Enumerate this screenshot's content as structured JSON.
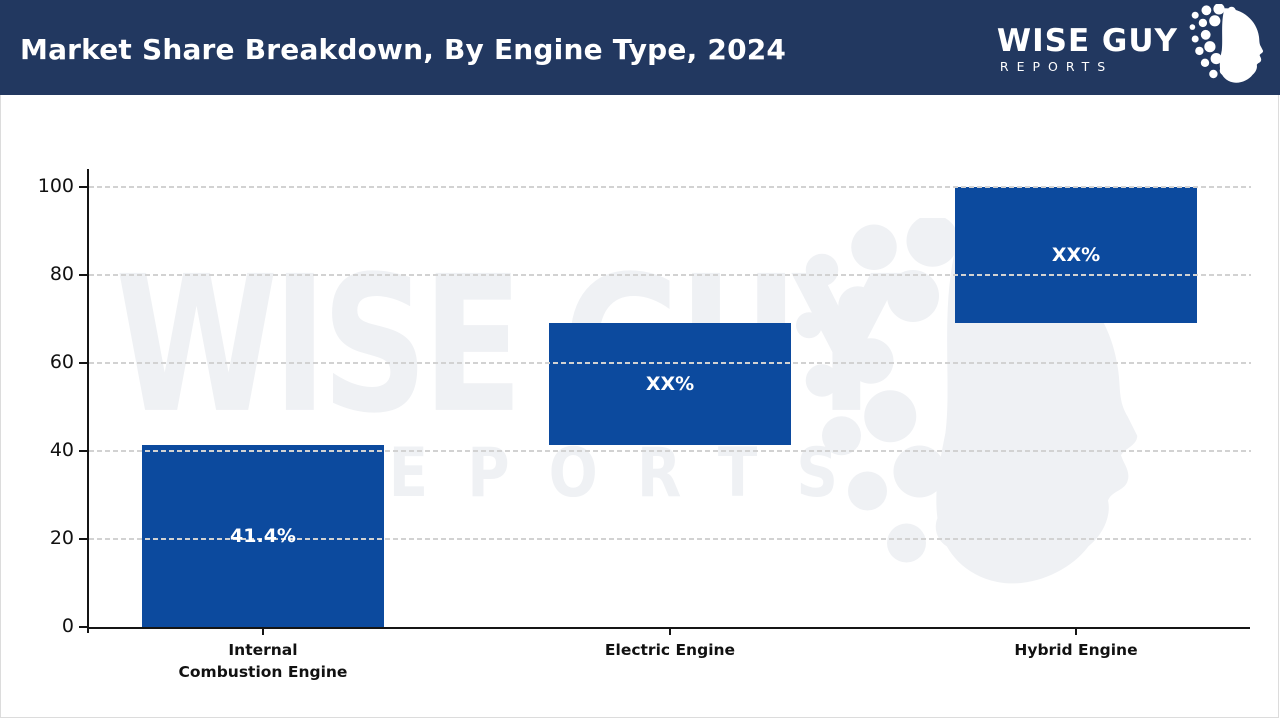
{
  "header": {
    "title": "Market Share Breakdown, By Engine Type, 2024",
    "logo": {
      "line1": "WISE GUY",
      "line2": "REPORTS"
    }
  },
  "watermark": {
    "line1": "WISE GUY",
    "line2": "REPORTS"
  },
  "colors": {
    "header_bg": "#223860",
    "bar": "#0c4a9e",
    "grid": "#d2d2d2",
    "axis": "#151515",
    "watermark": "#eff1f4",
    "value_label": "#ffffff"
  },
  "chart_data": {
    "type": "bar",
    "subtype": "waterfall",
    "title": "Market Share Breakdown, By Engine Type, 2024",
    "categories": [
      "Internal\nCombustion Engine",
      "Electric Engine",
      "Hybrid Engine"
    ],
    "segments": [
      {
        "category": "Internal Combustion Engine",
        "from": 0,
        "to": 41.4,
        "label": "41.4%"
      },
      {
        "category": "Electric Engine",
        "from": 41.4,
        "to": 69,
        "label": "XX%"
      },
      {
        "category": "Hybrid Engine",
        "from": 69,
        "to": 100,
        "label": "XX%"
      }
    ],
    "xlabel": "",
    "ylabel": "",
    "ylim": [
      0,
      100
    ],
    "yticks": [
      0,
      20,
      40,
      60,
      80,
      100
    ],
    "grid": "dashed-horizontal-over-bars",
    "legend": "none"
  }
}
